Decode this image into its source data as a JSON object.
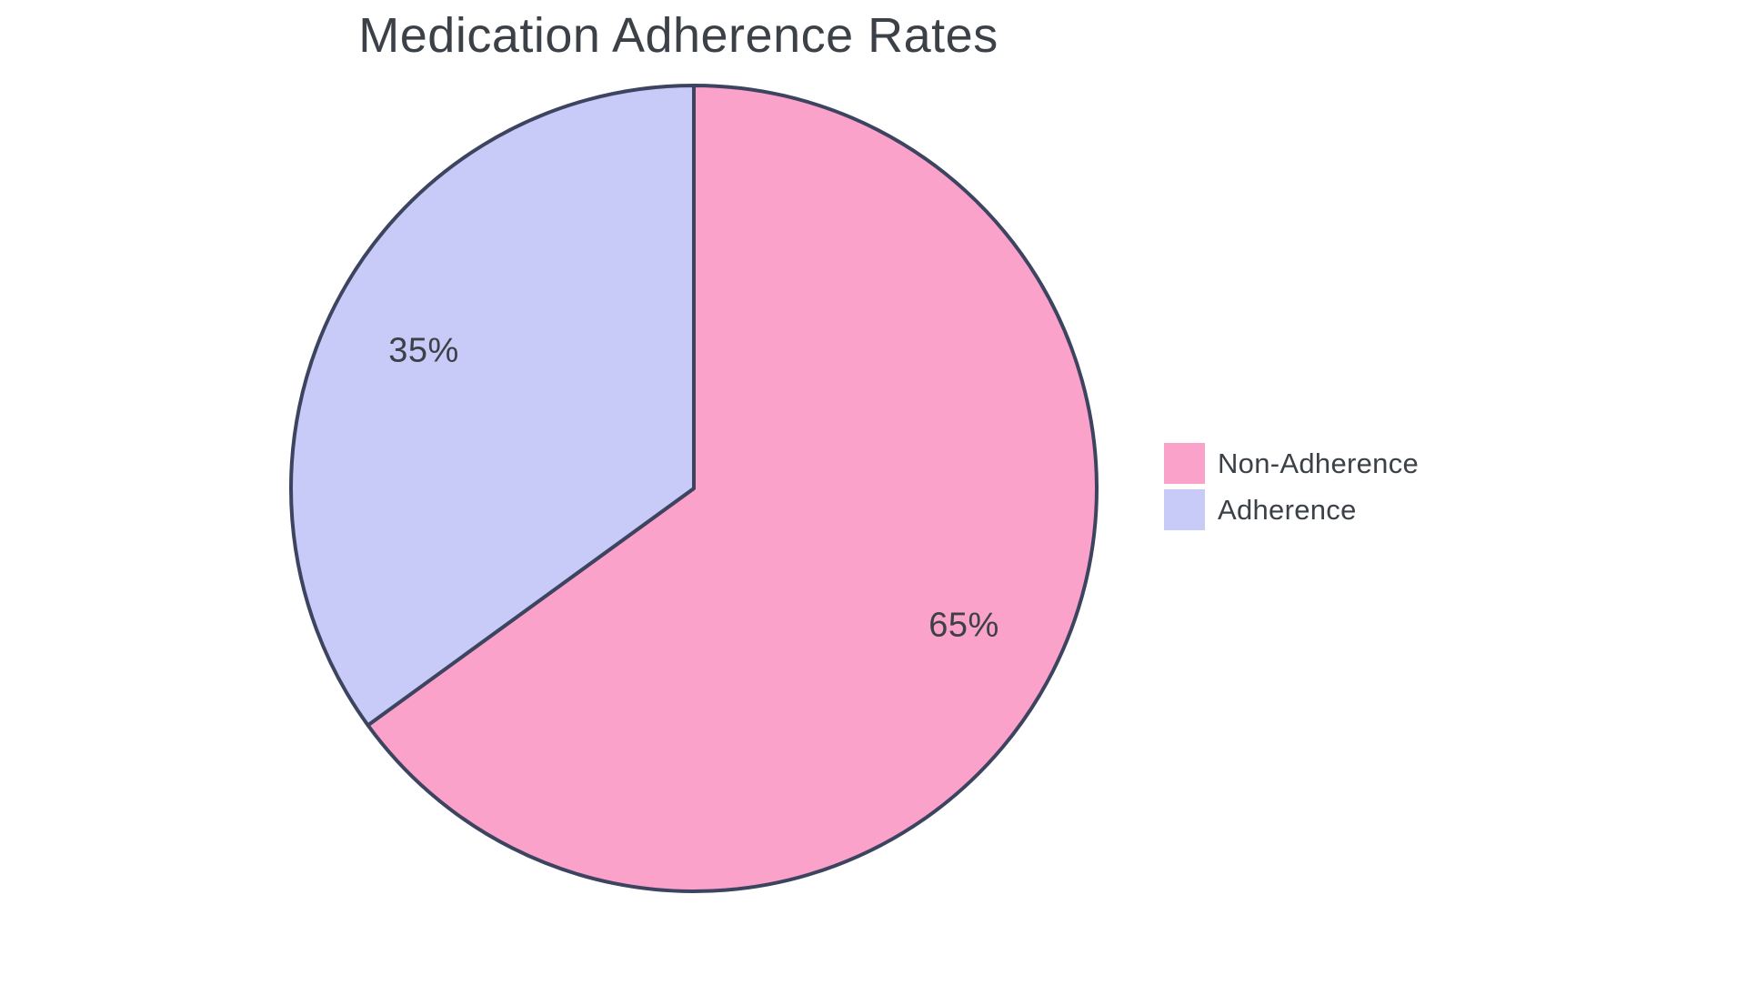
{
  "page": {
    "background": "#ffffff"
  },
  "chart_data": {
    "type": "pie",
    "title": "Medication Adherence Rates",
    "categories": [
      "Non-Adherence",
      "Adherence"
    ],
    "values": [
      65,
      35
    ],
    "slices": [
      {
        "label": "Non-Adherence",
        "value": 65,
        "display": "65%",
        "color": "#FBA2CB"
      },
      {
        "label": "Adherence",
        "value": 35,
        "display": "35%",
        "color": "#C8CAF7"
      }
    ],
    "start_angle": "12-o-clock",
    "direction": "clockwise",
    "stroke_color": "#3D4460",
    "stroke_width": 4,
    "label_color": "#3B4147",
    "legend_position": "right",
    "grid": false
  }
}
